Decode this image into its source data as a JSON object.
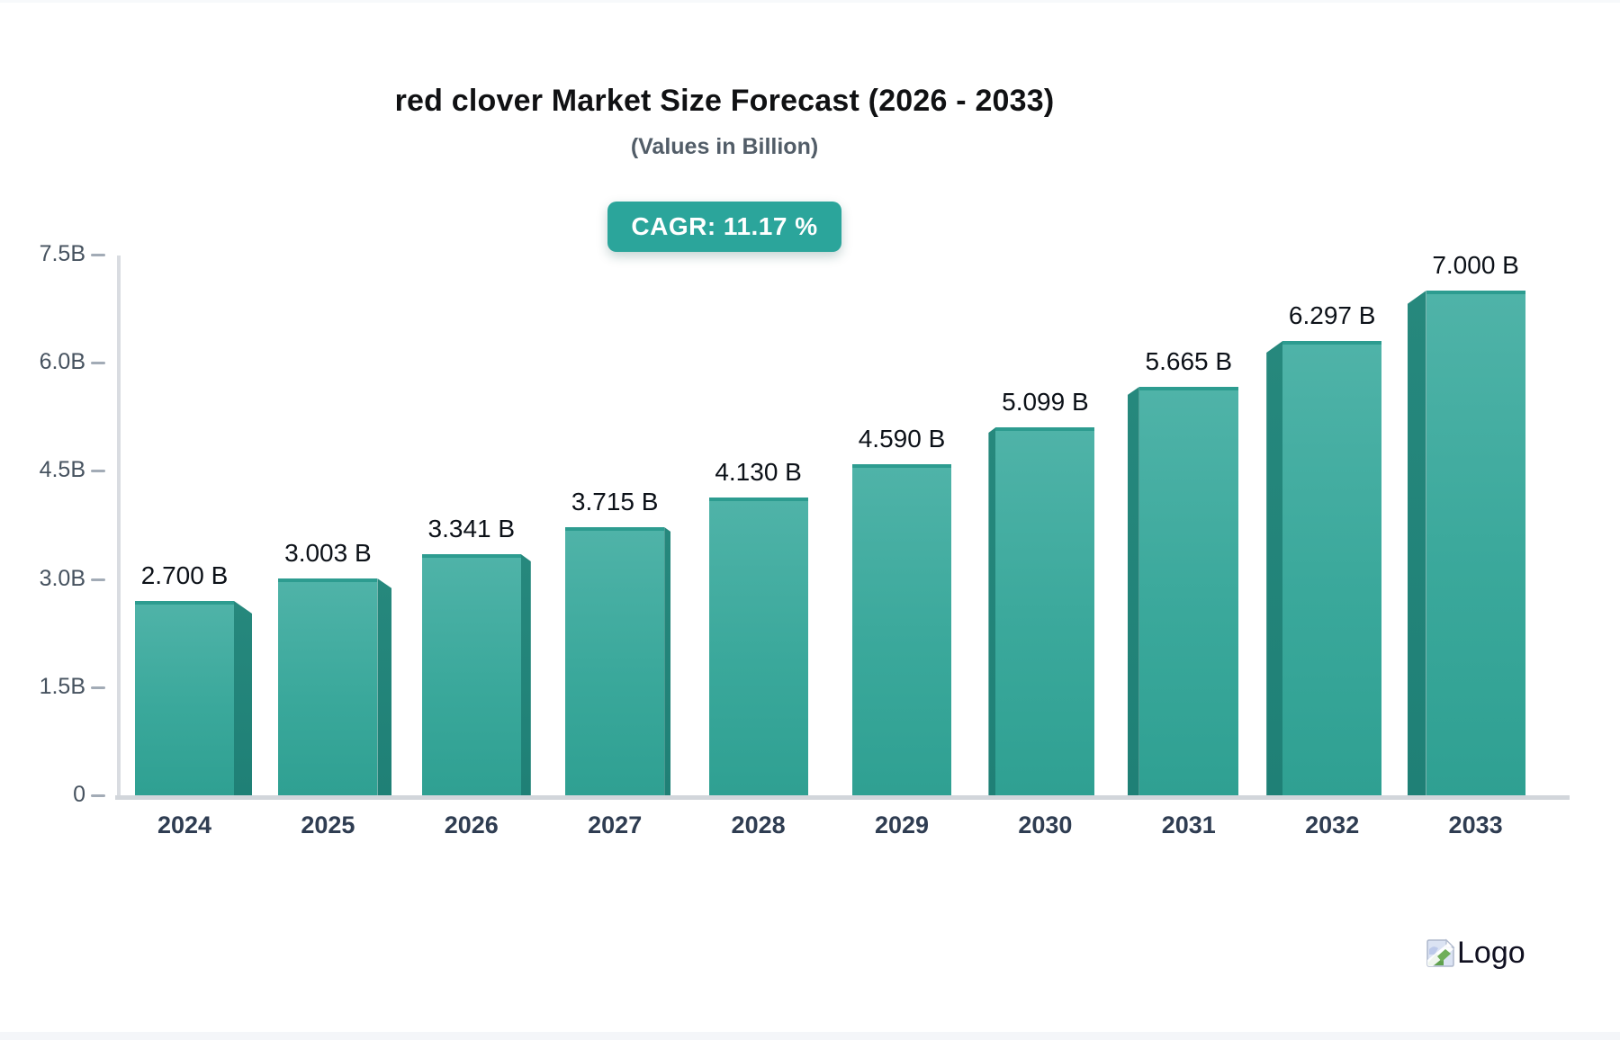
{
  "header": {
    "title": "red clover Market Size Forecast (2026 - 2033)",
    "subtitle": "(Values in Billion)",
    "cagr_label": "CAGR: 11.17 %"
  },
  "footer": {
    "logo_alt": "Logo"
  },
  "colors": {
    "badge_bg": "#2ba59b",
    "bar_face_top": "#4fb3a8",
    "bar_face_bottom": "#2fa092",
    "bar_side": "#1f8076",
    "bar_top_edge": "#2d9c90",
    "axis_line": "#d9dce1",
    "tick_text": "#46525f",
    "value_text": "#0c1118",
    "year_text": "#2f3d52"
  },
  "chart_data": {
    "type": "bar",
    "title": "red clover Market Size Forecast (2026 - 2033)",
    "subtitle": "(Values in Billion)",
    "cagr": "11.17 %",
    "categories": [
      "2024",
      "2025",
      "2026",
      "2027",
      "2028",
      "2029",
      "2030",
      "2031",
      "2032",
      "2033"
    ],
    "values": [
      2.7,
      3.003,
      3.341,
      3.715,
      4.13,
      4.59,
      5.099,
      5.665,
      6.297,
      7.0
    ],
    "value_labels": [
      "2.700 B",
      "3.003 B",
      "3.341 B",
      "3.715 B",
      "4.130 B",
      "4.590 B",
      "5.099 B",
      "5.665 B",
      "6.297 B",
      "7.000 B"
    ],
    "unit": "Billion",
    "xlabel": "",
    "ylabel": "",
    "ylim": [
      0,
      7.5
    ],
    "yticks": [
      {
        "label": "0",
        "value": 0
      },
      {
        "label": "1.5B",
        "value": 1.5
      },
      {
        "label": "3.0B",
        "value": 3.0
      },
      {
        "label": "4.5B",
        "value": 4.5
      },
      {
        "label": "6.0B",
        "value": 6.0
      },
      {
        "label": "7.5B",
        "value": 7.5
      }
    ],
    "grid": false,
    "legend": false,
    "style": "pseudo-3d bars, vanishing point at chart center"
  }
}
